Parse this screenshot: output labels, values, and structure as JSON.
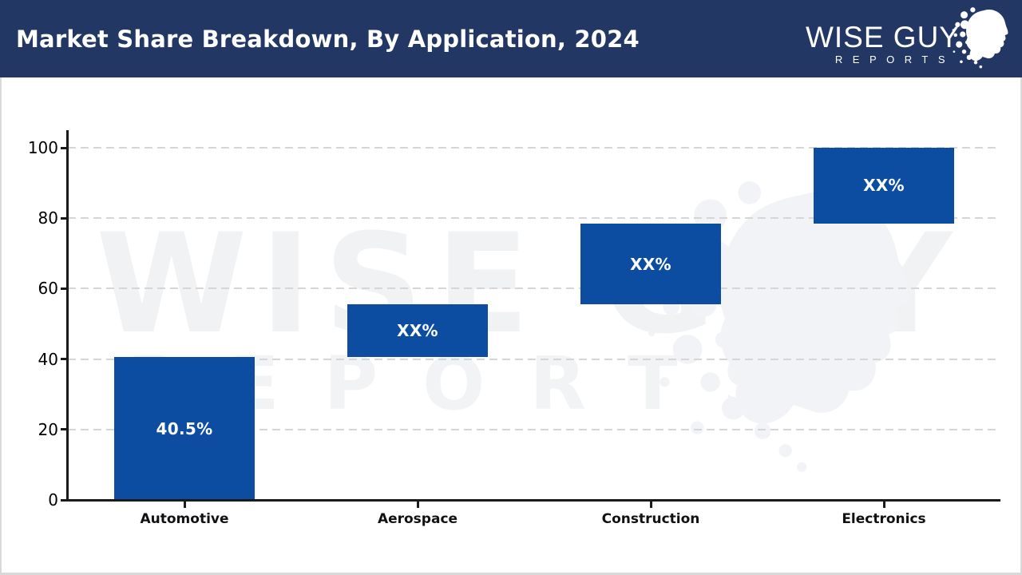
{
  "header": {
    "title": "Market Share Breakdown, By Application, 2024",
    "bg_color": "#223764",
    "logo": {
      "line1": "WISE GUY",
      "line2": "REPORTS"
    }
  },
  "watermark": {
    "line1": "WISE GUY",
    "line2": "REPORTS"
  },
  "chart_data": {
    "type": "bar",
    "variant": "waterfall",
    "title": "Market Share Breakdown, By Application, 2024",
    "categories": [
      "Automotive",
      "Aerospace",
      "Construction",
      "Electronics"
    ],
    "segments": [
      {
        "category": "Automotive",
        "start": 0,
        "end": 40.5,
        "label": "40.5%"
      },
      {
        "category": "Aerospace",
        "start": 40.5,
        "end": 55.5,
        "label": "XX%"
      },
      {
        "category": "Construction",
        "start": 55.5,
        "end": 78.5,
        "label": "XX%"
      },
      {
        "category": "Electronics",
        "start": 78.5,
        "end": 100,
        "label": "XX%"
      }
    ],
    "ylim": [
      0,
      100
    ],
    "yticks": [
      0,
      20,
      40,
      60,
      80,
      100
    ],
    "grid": "horizontal-dashed",
    "bar_color": "#0c4da2",
    "axis_color": "#1a1a1a",
    "grid_color": "#d6d6d6",
    "legend": null
  }
}
